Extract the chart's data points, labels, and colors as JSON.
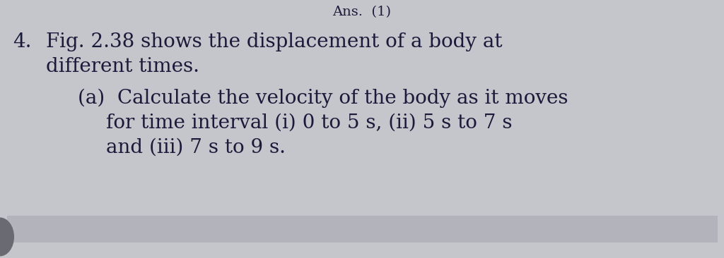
{
  "bg_color": "#c5c5cc",
  "text_color": "#1a1a3a",
  "bottom_strip_color": "#b0b0b8",
  "left_circle_color": "#888890",
  "top_text": "Ans.  (1)",
  "line1_num": "4.",
  "line1_text": "Fig. 2.38 shows the displacement of a body at",
  "line2_text": "different times.",
  "line3_text": "(a)  Calculate the velocity of the body as it moves",
  "line4_text": "for time interval (i) 0 to 5 s, (ii) 5 s to 7 s",
  "line5_text": "and (iii) 7 s to 9 s.",
  "font_size": 20,
  "font_size_top": 14,
  "fig_width": 10.24,
  "fig_height": 3.66,
  "dpi": 100
}
